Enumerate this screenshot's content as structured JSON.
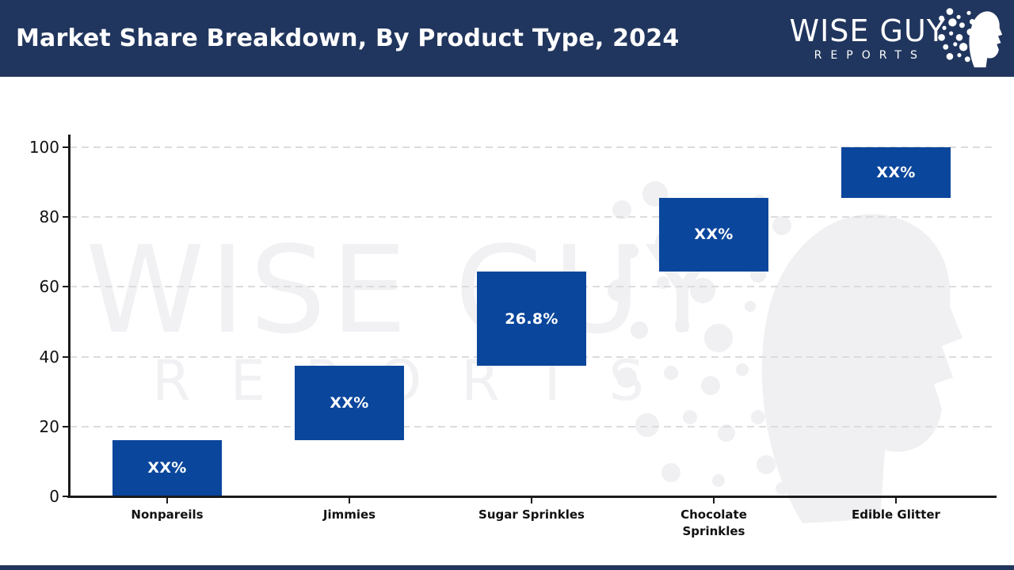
{
  "header": {
    "title": "Market Share Breakdown, By Product Type, 2024",
    "logo": {
      "line1": "WISE GUY",
      "line2": "REPORTS"
    }
  },
  "watermark": {
    "line1": "WISE GUY",
    "line2": "REPORTS"
  },
  "colors": {
    "header_bg": "#21365E",
    "bar_fill": "#0A469B",
    "gridline": "#DCDCDC",
    "watermark": "#F1F1F4",
    "axis": "#1A1A1A",
    "bar_label_text": "#FFFFFF"
  },
  "icons": {
    "logo_head": "dotted-head-profile",
    "watermark_head": "dotted-head-profile"
  },
  "chart_data": {
    "type": "bar",
    "subtype": "floating-waterfall",
    "title": "Market Share Breakdown, By Product Type, 2024",
    "categories": [
      "Nonpareils",
      "Jimmies",
      "Sugar Sprinkles",
      "Chocolate Sprinkles",
      "Edible Glitter"
    ],
    "bar_labels": [
      "XX%",
      "XX%",
      "26.8%",
      "XX%",
      "XX%"
    ],
    "bar_start": [
      0,
      16.1,
      37.5,
      64.3,
      85.6
    ],
    "bar_end": [
      16.1,
      37.5,
      64.3,
      85.6,
      100
    ],
    "values_pct": [
      16.1,
      21.4,
      26.8,
      21.3,
      14.4
    ],
    "xlabel": "",
    "ylabel": "",
    "ylim": [
      0,
      100
    ],
    "yticks": [
      0,
      20,
      40,
      60,
      80,
      100
    ],
    "grid": "horizontal-dashed",
    "legend": "none"
  }
}
